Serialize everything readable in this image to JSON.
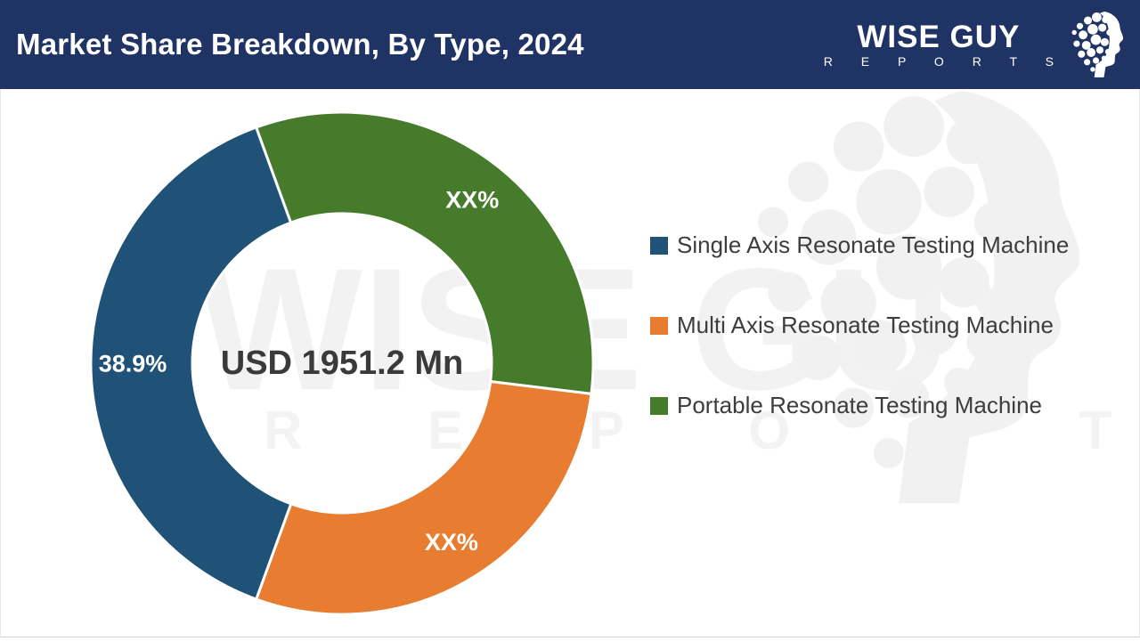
{
  "header": {
    "title": "Market Share Breakdown, By Type, 2024",
    "logo": {
      "line1": "WISE GUY",
      "line2": "R E P O R T S"
    }
  },
  "watermark": {
    "line1": "WISE GUY",
    "line2": "R E P O R T S"
  },
  "chart_data": {
    "type": "pie",
    "subtype": "donut",
    "title": "Market Share Breakdown, By Type, 2024",
    "center_label": "USD 1951.2 Mn",
    "legend_position": "right",
    "start_angle_deg": -20,
    "draw_order": [
      2,
      1,
      0
    ],
    "segments": [
      {
        "label": "Single Axis Resonate Testing Machine",
        "value_pct": 38.9,
        "display": "38.9%",
        "color": "#1f5276"
      },
      {
        "label": "Multi Axis Resonate Testing Machine",
        "value_pct": 28.6,
        "display": "XX%",
        "color": "#e87d31"
      },
      {
        "label": "Portable Resonate Testing Machine",
        "value_pct": 32.5,
        "display": "XX%",
        "color": "#477b2c"
      }
    ]
  }
}
